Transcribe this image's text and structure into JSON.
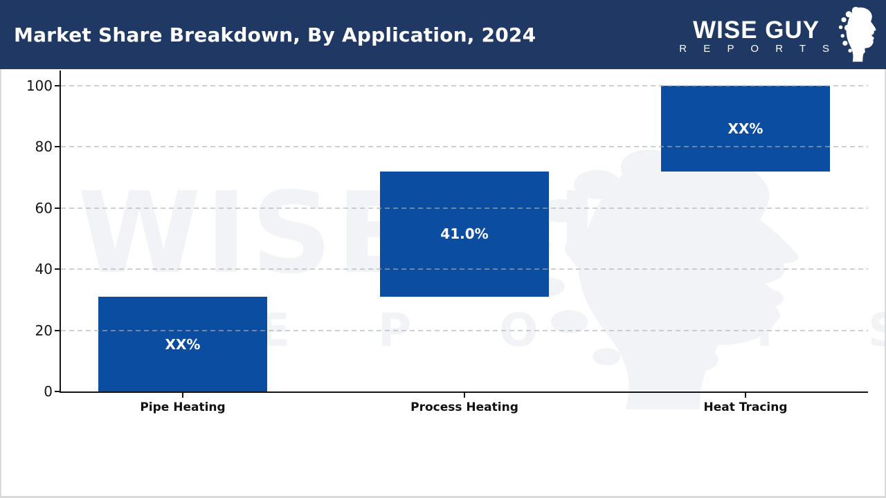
{
  "header": {
    "title": "Market Share Breakdown, By Application, 2024",
    "logo": {
      "line1": "WISE GUY",
      "line2": "R E P O R T S"
    }
  },
  "watermark": {
    "line1": "WISE GUY",
    "line2": "R E P O R T S"
  },
  "chart_data": {
    "type": "bar",
    "variant": "floating-segment-breakdown",
    "title": "Market Share Breakdown, By Application, 2024",
    "categories": [
      "Pipe Heating",
      "Process Heating",
      "Heat Tracing"
    ],
    "bars": [
      {
        "category": "Pipe Heating",
        "start": 0,
        "end": 31,
        "label": "XX%"
      },
      {
        "category": "Process Heating",
        "start": 31,
        "end": 72,
        "label": "41.0%"
      },
      {
        "category": "Heat Tracing",
        "start": 72,
        "end": 100,
        "label": "XX%"
      }
    ],
    "xlabel": "",
    "ylabel": "",
    "ylim": [
      0,
      105
    ],
    "yticks": [
      0,
      20,
      40,
      60,
      80,
      100
    ],
    "grid": "dashed-horizontal",
    "legend": "none"
  },
  "colors": {
    "header_bg": "#1f3864",
    "bar_fill": "#0a4da1",
    "bar_label": "#ffffff",
    "axis": "#141414",
    "grid": "#d9d9d9",
    "watermark": "#f2f3f6",
    "page_border": "#d9d9d9"
  }
}
